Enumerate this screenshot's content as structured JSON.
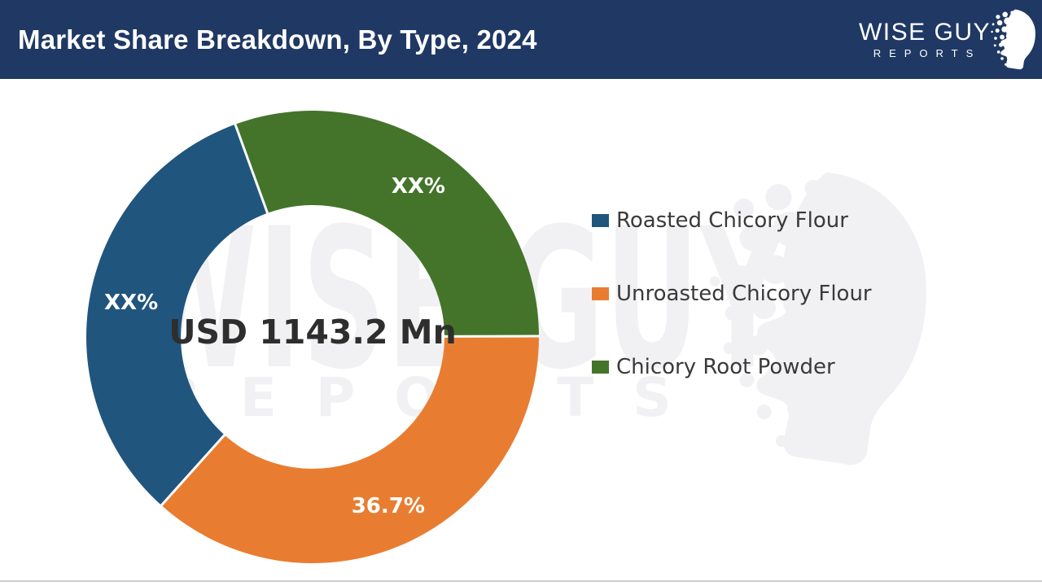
{
  "header": {
    "title": "Market Share Breakdown, By Type, 2024",
    "logo": {
      "name": "WISE GUY",
      "sub": "REPORTS"
    }
  },
  "watermark": {
    "line1": "WISE GUY",
    "line2": "REPORTS"
  },
  "chart_data": {
    "type": "donut",
    "title": "Market Share Breakdown, By Type, 2024",
    "center_label": "USD 1143.2 Mn",
    "legend_position": "right",
    "start_angle_deg": 110,
    "direction": "counterclockwise",
    "segments": [
      {
        "label": "Roasted Chicory Flour",
        "display_pct": "XX%",
        "value_pct": 32.8,
        "color": "#20557E"
      },
      {
        "label": "Unroasted Chicory Flour",
        "display_pct": "36.7%",
        "value_pct": 36.7,
        "color": "#E87D31"
      },
      {
        "label": "Chicory Root Powder",
        "display_pct": "XX%",
        "value_pct": 30.5,
        "color": "#43742A"
      }
    ]
  }
}
